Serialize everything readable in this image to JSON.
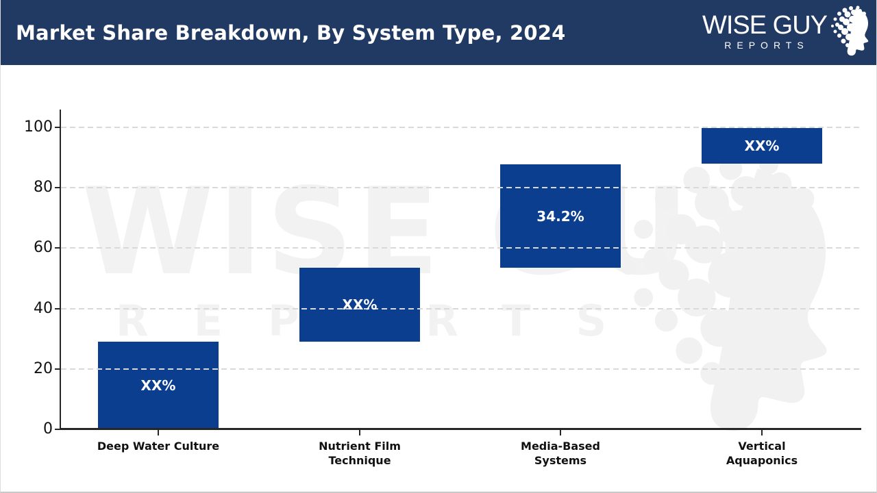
{
  "header": {
    "title": "Market Share Breakdown, By System Type, 2024",
    "logo_brand": "WISE GUY",
    "logo_sub": "REPORTS"
  },
  "watermark": {
    "brand": "WISE GUY",
    "sub": "REPORTS"
  },
  "colors": {
    "header_bg": "#213a64",
    "bar": "#0b3e8f",
    "bar_label": "#ffffff",
    "axis": "#262626",
    "grid": "#d9d9d9",
    "tick_text": "#111111",
    "watermark": "#f2f2f2"
  },
  "chart_data": {
    "type": "bar",
    "variant": "floating-waterfall",
    "title": "Market Share Breakdown, By System Type, 2024",
    "categories": [
      "Deep Water Culture",
      "Nutrient Film Technique",
      "Media-Based Systems",
      "Vertical Aquaponics"
    ],
    "category_lines": [
      [
        "Deep Water Culture"
      ],
      [
        "Nutrient Film",
        "Technique"
      ],
      [
        "Media-Based",
        "Systems"
      ],
      [
        "Vertical",
        "Aquaponics"
      ]
    ],
    "series": [
      {
        "name": "Market share (%)",
        "segments": [
          {
            "category": "Deep Water Culture",
            "start": 0,
            "end": 29,
            "label": "XX%"
          },
          {
            "category": "Nutrient Film Technique",
            "start": 29,
            "end": 53.5,
            "label": "XX%"
          },
          {
            "category": "Media-Based Systems",
            "start": 53.5,
            "end": 87.7,
            "label": "34.2%"
          },
          {
            "category": "Vertical Aquaponics",
            "start": 88,
            "end": 99.8,
            "label": "XX%"
          }
        ]
      }
    ],
    "xlabel": "",
    "ylabel": "",
    "ylim": [
      0,
      100
    ],
    "yticks": [
      0,
      20,
      40,
      60,
      80,
      100
    ],
    "grid": "horizontal-dashed-on-top",
    "legend": "none"
  }
}
